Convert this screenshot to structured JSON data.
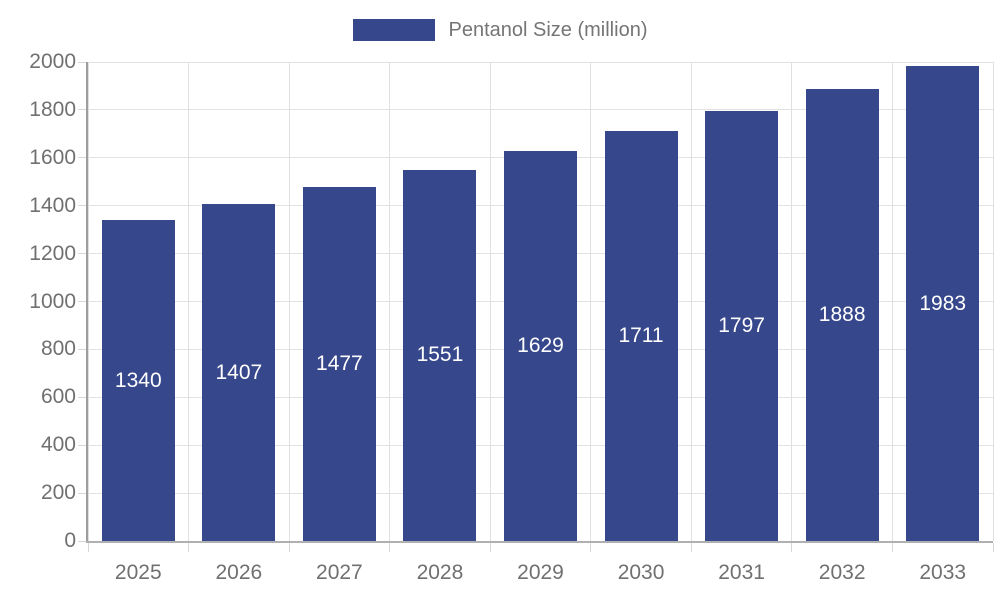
{
  "legend": {
    "label": "Pentanol Size (million)"
  },
  "chart_data": {
    "type": "bar",
    "title": "",
    "series_name": "Pentanol Size (million)",
    "categories": [
      "2025",
      "2026",
      "2027",
      "2028",
      "2029",
      "2030",
      "2031",
      "2032",
      "2033"
    ],
    "values": [
      1340,
      1407,
      1477,
      1551,
      1629,
      1711,
      1797,
      1888,
      1983
    ],
    "value_labels_shown": true,
    "xlabel": "",
    "ylabel": "",
    "ylim": [
      0,
      2000
    ],
    "yticks": [
      0,
      200,
      400,
      600,
      800,
      1000,
      1200,
      1400,
      1600,
      1800,
      2000
    ],
    "grid": true,
    "legend_position": "top-center",
    "bar_color": "#36478B",
    "value_label_color": "#FFFFFF"
  },
  "colors": {
    "bar": "#36478B",
    "axis_label": "#707070",
    "legend_text": "#757575",
    "gridline_h": "#E3E3E6",
    "gridline_v": "#E0E0E3",
    "y_axis_line": "#9E9E9E",
    "x_axis_line": "#B0B0B3",
    "background": "#FFFFFF"
  }
}
